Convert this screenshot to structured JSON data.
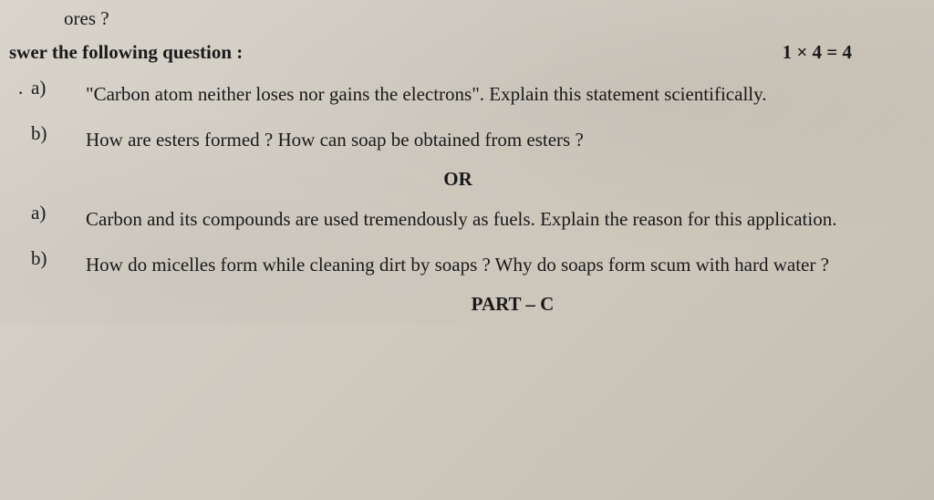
{
  "fragment_top": "ores ?",
  "instruction": "swer the following question :",
  "marks": "1 × 4 = 4",
  "set1": {
    "a_label": "a)",
    "a_text": "\"Carbon atom neither loses nor gains the electrons\". Explain this statement scientifically.",
    "b_label": "b)",
    "b_text": "How are esters formed ? How can soap be obtained from esters ?"
  },
  "or_label": "OR",
  "set2": {
    "a_label": "a)",
    "a_text": "Carbon and its compounds are used tremendously as fuels. Explain the reason for this application.",
    "b_label": "b)",
    "b_text": "How do micelles form while cleaning dirt by soaps ? Why do soaps form scum with hard water ?"
  },
  "part_label": "PART – C",
  "dot": "."
}
